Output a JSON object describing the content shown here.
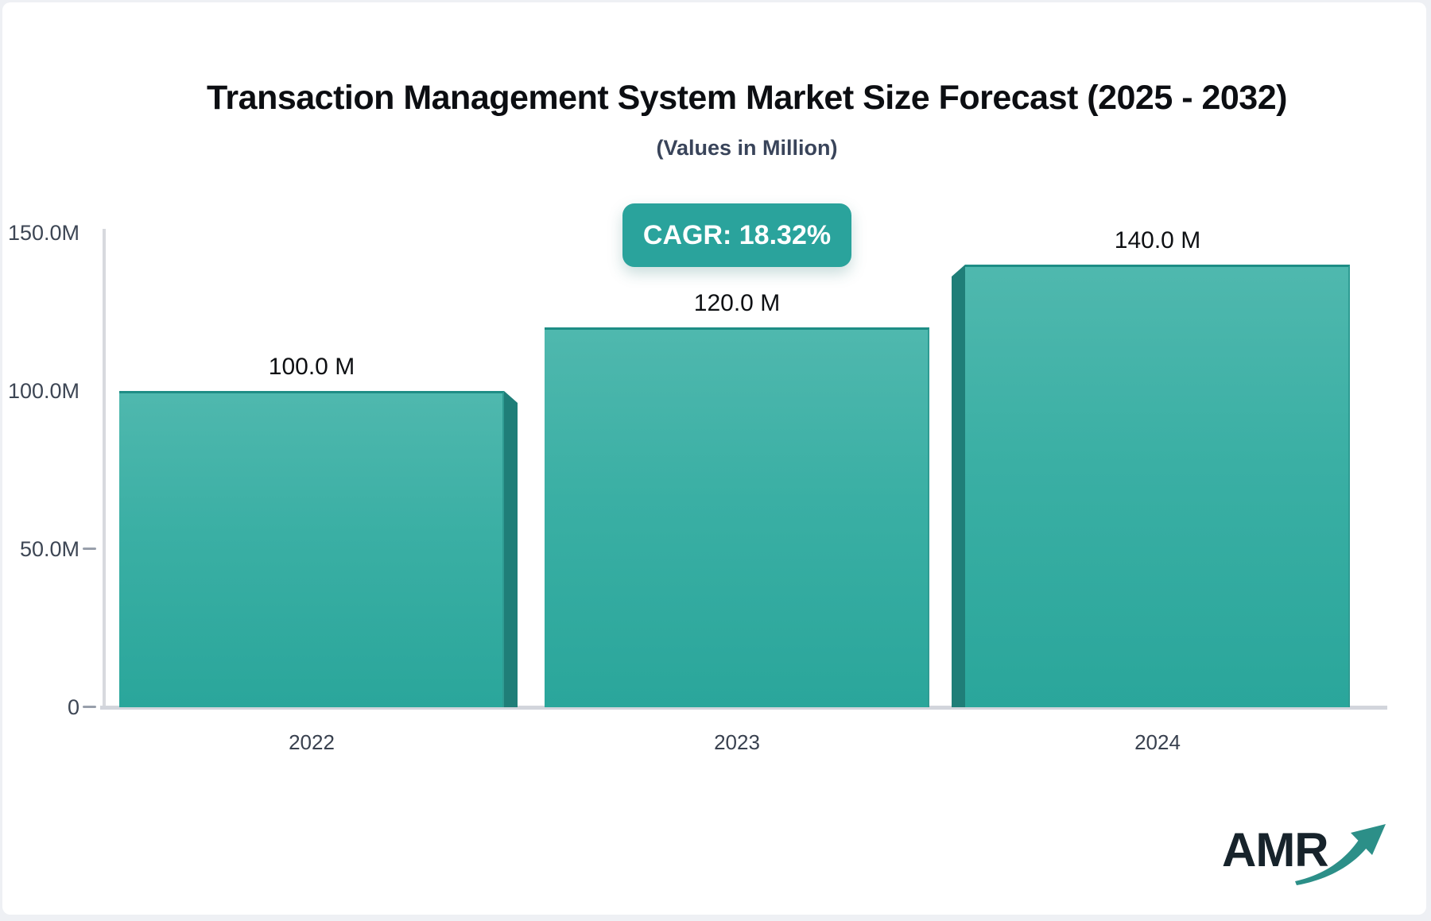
{
  "page": {
    "background": "#eef0f4",
    "card_background": "#ffffff"
  },
  "header": {
    "title": "Transaction Management System Market Size Forecast (2025 - 2032)",
    "subtitle": "(Values in Million)"
  },
  "cagr_badge": {
    "label": "CAGR: 18.32%",
    "background": "#2aa39c",
    "text_color": "#ffffff"
  },
  "chart_data": {
    "type": "bar",
    "title": "Transaction Management System Market Size Forecast (2025 - 2032)",
    "subtitle": "(Values in Million)",
    "unit": "Million",
    "categories": [
      "2022",
      "2023",
      "2024"
    ],
    "values": [
      100.0,
      120.0,
      140.0
    ],
    "value_labels": [
      "100.0 M",
      "120.0 M",
      "140.0 M"
    ],
    "y_ticks": [
      "150.0M",
      "100.0M",
      "50.0M",
      "0"
    ],
    "y_tick_values": [
      150,
      100,
      50,
      0
    ],
    "y_tick_dash": [
      false,
      false,
      true,
      true
    ],
    "ylim": [
      0,
      150
    ],
    "grid": false,
    "legend": false,
    "bar_color_top": "#4fb8ae",
    "bar_color_bottom": "#2aa69b",
    "bar_side_color": "#1f7e78",
    "bar_top_border_color": "#1e8d85",
    "axis_color": "#d5d7dd"
  },
  "logo": {
    "text": "AMR",
    "text_color": "#17232b",
    "arrow_color": "#2c8f88",
    "arrow_icon": "trend-arrow-icon"
  }
}
